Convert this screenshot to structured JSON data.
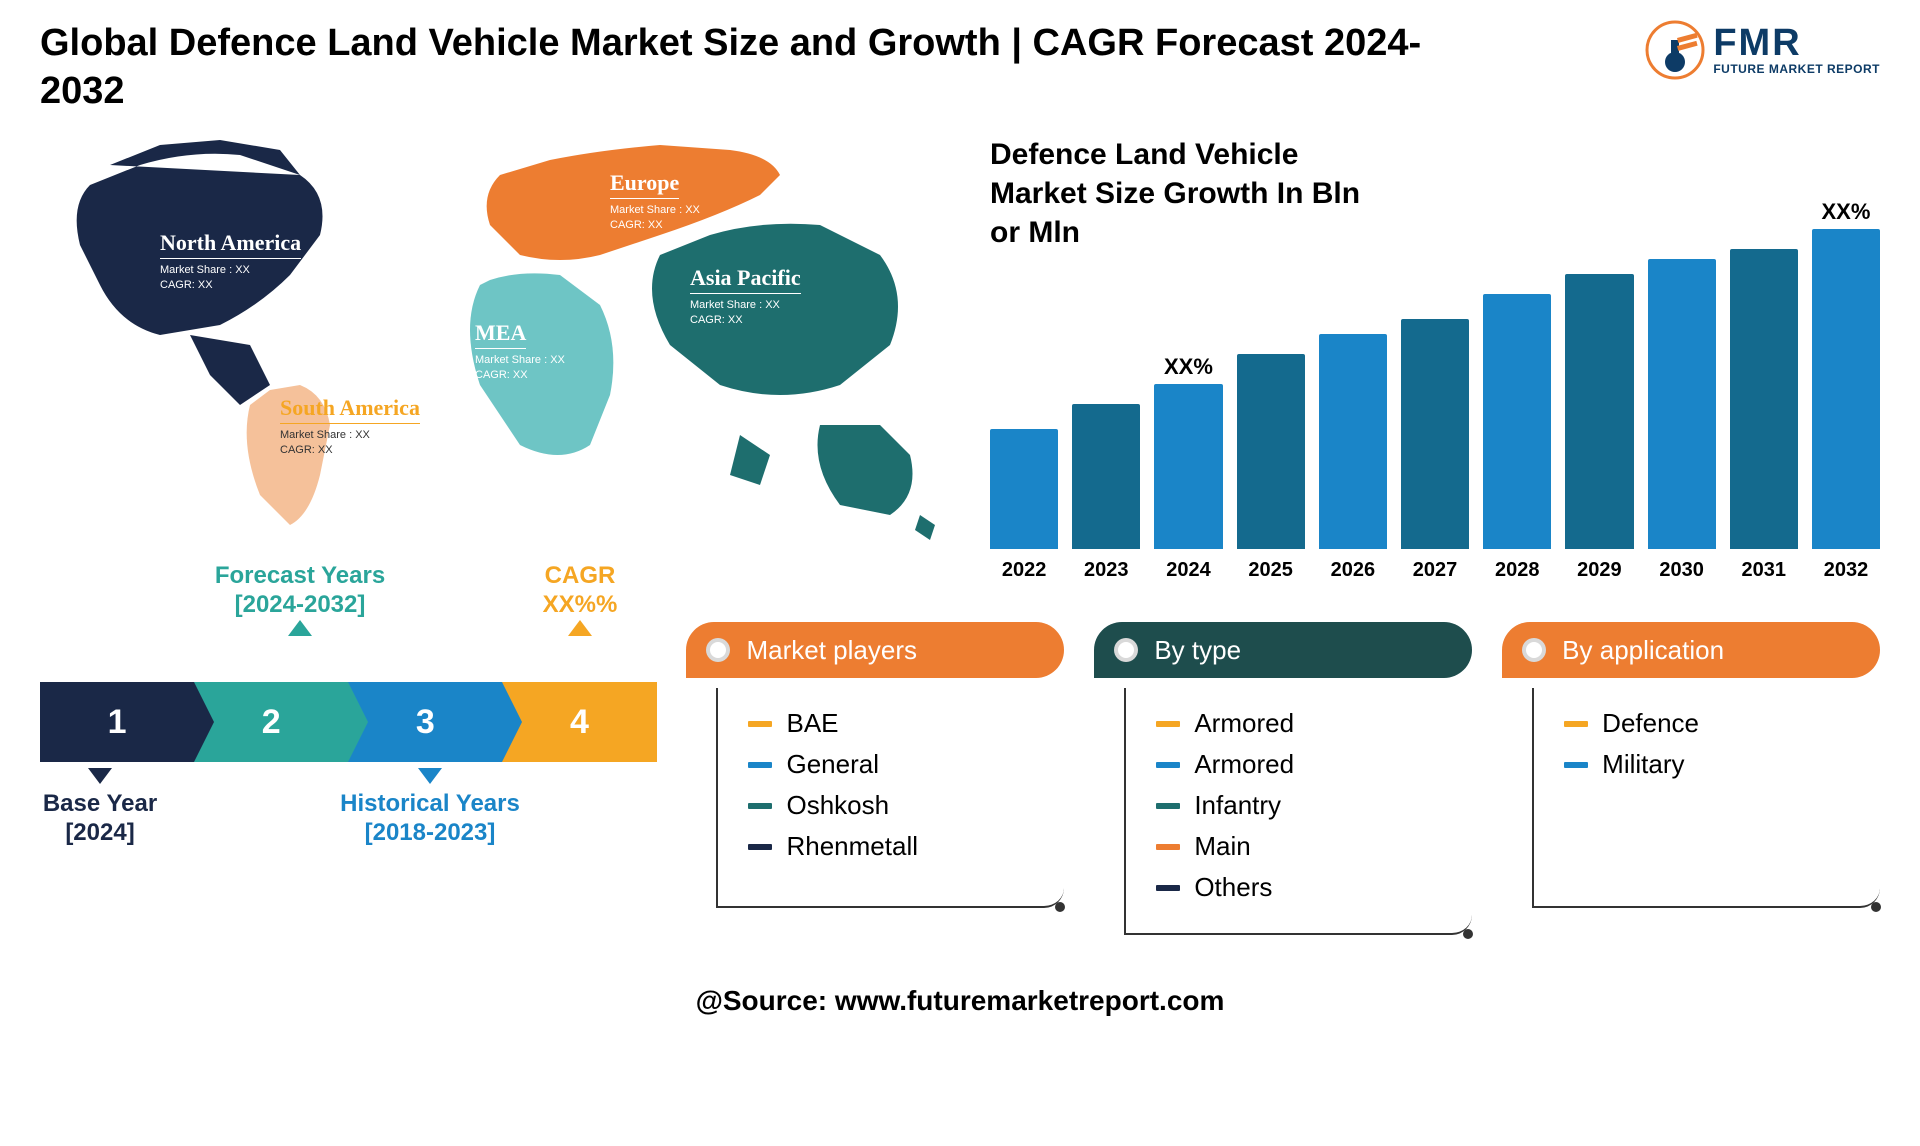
{
  "title": "Global Defence Land Vehicle Market Size and Growth | CAGR Forecast 2024-2032",
  "logo": {
    "fmr": "FMR",
    "sub": "FUTURE MARKET REPORT"
  },
  "map": {
    "regions": {
      "north_america": {
        "name": "North America",
        "share": "Market Share : XX",
        "cagr": "CAGR: XX",
        "color": "#1a2847"
      },
      "south_america": {
        "name": "South America",
        "share": "Market Share : XX",
        "cagr": "CAGR: XX",
        "color": "#f5c19a"
      },
      "europe": {
        "name": "Europe",
        "share": "Market Share : XX",
        "cagr": "CAGR: XX",
        "color": "#ed7d31"
      },
      "mea": {
        "name": "MEA",
        "share": "Market Share : XX",
        "cagr": "CAGR: XX",
        "color": "#6ec5c5"
      },
      "asia_pacific": {
        "name": "Asia Pacific",
        "share": "Market Share : XX",
        "cagr": "CAGR: XX",
        "color": "#1e6e6e"
      }
    }
  },
  "chart": {
    "title": "Defence Land Vehicle Market Size Growth In Bln or Mln",
    "type": "bar",
    "years": [
      "2022",
      "2023",
      "2024",
      "2025",
      "2026",
      "2027",
      "2028",
      "2029",
      "2030",
      "2031",
      "2032"
    ],
    "heights": [
      120,
      145,
      165,
      195,
      215,
      230,
      255,
      275,
      290,
      300,
      320
    ],
    "colors": [
      "#1a85c8",
      "#146a8e",
      "#1a85c8",
      "#146a8e",
      "#1a85c8",
      "#146a8e",
      "#1a85c8",
      "#146a8e",
      "#1a85c8",
      "#146a8e",
      "#1a85c8"
    ],
    "annotations": [
      {
        "index": 2,
        "text": "XX%"
      },
      {
        "index": 10,
        "text": "XX%"
      }
    ],
    "label_fontsize": 20
  },
  "timeline": {
    "segments": [
      {
        "num": "1",
        "color": "#1a2847"
      },
      {
        "num": "2",
        "color": "#2aa59a"
      },
      {
        "num": "3",
        "color": "#1a85c8"
      },
      {
        "num": "4",
        "color": "#f5a623"
      }
    ],
    "labels": {
      "forecast": {
        "title": "Forecast Years",
        "sub": "[2024-2032]",
        "color": "#2aa59a"
      },
      "cagr": {
        "title": "CAGR",
        "sub": "XX%%",
        "color": "#f5a623"
      },
      "base": {
        "title": "Base Year",
        "sub": "[2024]",
        "color": "#1a2847"
      },
      "historical": {
        "title": "Historical Years",
        "sub": "[2018-2023]",
        "color": "#1a85c8"
      }
    }
  },
  "categories": {
    "market_players": {
      "title": "Market players",
      "header_color": "#ed7d31",
      "items": [
        {
          "label": "BAE",
          "color": "#f5a623"
        },
        {
          "label": "General",
          "color": "#1a85c8"
        },
        {
          "label": "Oshkosh",
          "color": "#1e6e6e"
        },
        {
          "label": "Rhenmetall",
          "color": "#1a2847"
        }
      ]
    },
    "by_type": {
      "title": "By type",
      "header_color": "#1e4d4d",
      "items": [
        {
          "label": "Armored",
          "color": "#f5a623"
        },
        {
          "label": "Armored",
          "color": "#1a85c8"
        },
        {
          "label": "Infantry",
          "color": "#1e6e6e"
        },
        {
          "label": "Main",
          "color": "#ed7d31"
        },
        {
          "label": "Others",
          "color": "#1a2847"
        }
      ]
    },
    "by_application": {
      "title": "By application",
      "header_color": "#ed7d31",
      "items": [
        {
          "label": "Defence",
          "color": "#f5a623"
        },
        {
          "label": "Military",
          "color": "#1a85c8"
        }
      ]
    }
  },
  "source": "@Source: www.futuremarketreport.com"
}
